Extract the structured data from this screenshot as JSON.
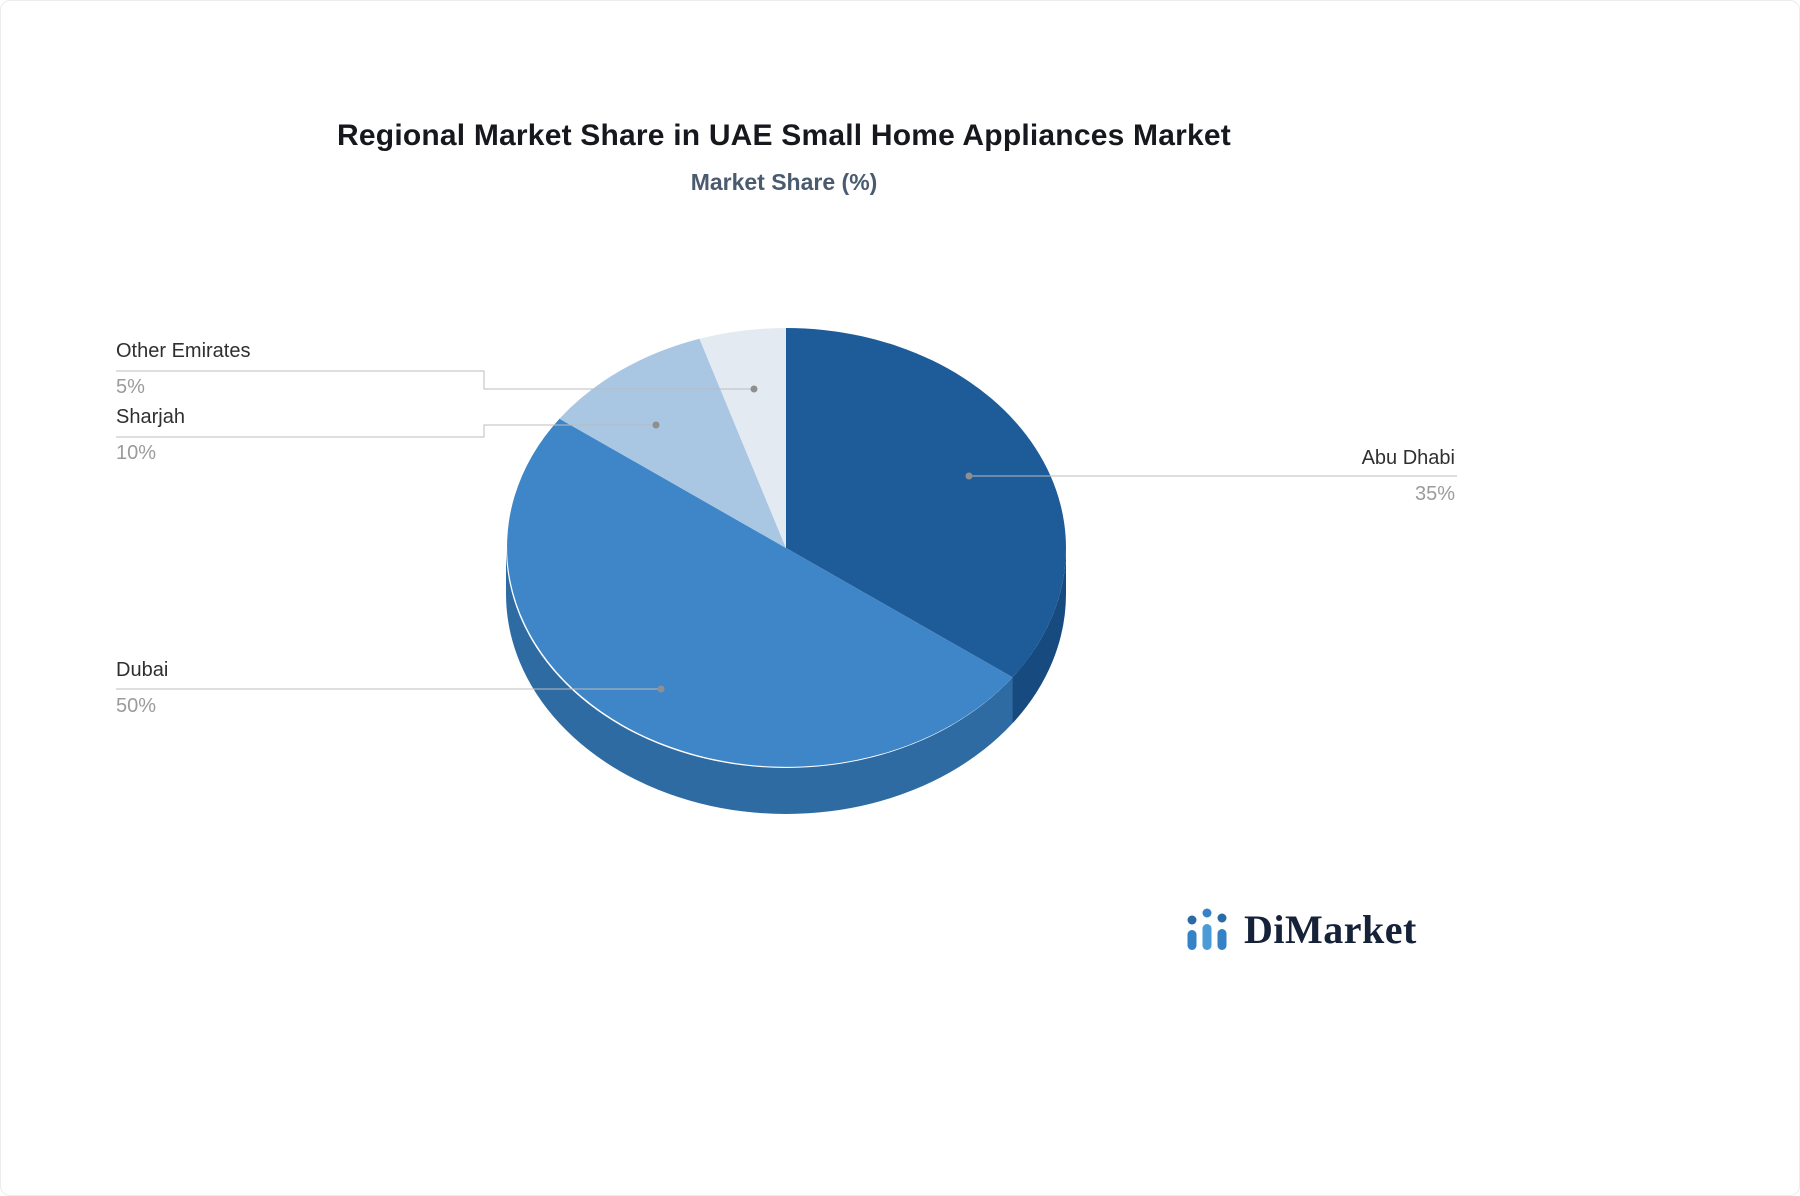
{
  "page": {
    "title": "Regional Market Share in UAE Small Home Appliances Market",
    "subtitle": "Market Share (%)"
  },
  "branding": {
    "logo_text": "DiMarket",
    "logo_icon": "bar-chart-icon",
    "logo_text_color": "#152238",
    "logo_icon_color": "#3583C6"
  },
  "chart_data": {
    "type": "pie",
    "style": "3d",
    "title": "Regional Market Share in UAE Small Home Appliances Market",
    "subtitle": "Market Share (%)",
    "unit": "%",
    "categories": [
      "Abu Dhabi",
      "Dubai",
      "Sharjah",
      "Other Emirates"
    ],
    "values": [
      35,
      50,
      10,
      5
    ],
    "value_labels": [
      "35%",
      "50%",
      "10%",
      "5%"
    ],
    "colors": [
      "#1E5C99",
      "#3E86C7",
      "#A9C6E3",
      "#E4EAF2"
    ],
    "depth_colors": [
      "#174B80",
      "#2F6BA3",
      "#8FB2D6",
      "#C9D5E3"
    ],
    "start_angle": 0,
    "direction": "clockwise",
    "legend": "none",
    "labels": "outside-with-leader-lines"
  }
}
